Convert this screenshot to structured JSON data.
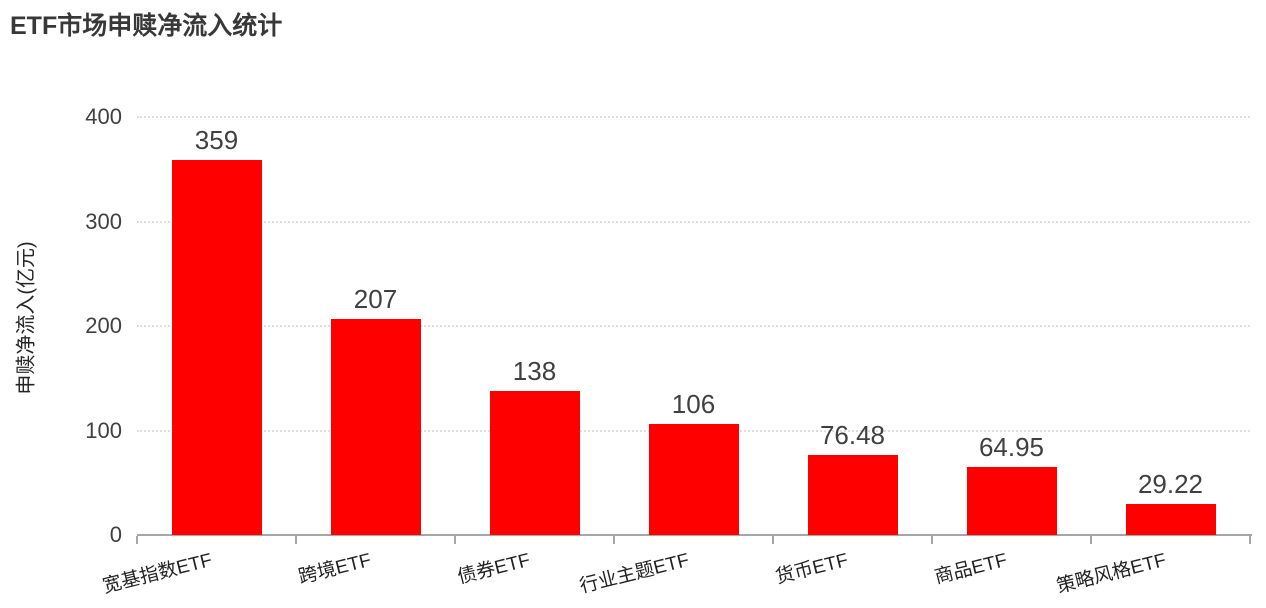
{
  "header": {
    "title": "ETF市场申赎净流入统计"
  },
  "chart_data": {
    "type": "bar",
    "title": "ETF市场申赎净流入统计",
    "categories": [
      "宽基指数ETF",
      "跨境ETF",
      "债券ETF",
      "行业主题ETF",
      "货币ETF",
      "商品ETF",
      "策略风格ETF"
    ],
    "values": [
      359,
      207,
      138,
      106,
      76.48,
      64.95,
      29.22
    ],
    "value_labels": [
      "359",
      "207",
      "138",
      "106",
      "76.48",
      "64.95",
      "29.22"
    ],
    "xlabel": "",
    "ylabel": "申赎净流入(亿元)",
    "ylim": [
      0,
      400
    ],
    "yticks": [
      0,
      100,
      200,
      300,
      400
    ],
    "ytick_labels": [
      "0",
      "100",
      "200",
      "300",
      "400"
    ],
    "grid": "horizontal-dotted",
    "legend": "none",
    "bar_color": "#ff0000",
    "value_label_color": "#404040",
    "gridline_color": "#dedede",
    "axis_line_color": "#a6a6a6"
  }
}
